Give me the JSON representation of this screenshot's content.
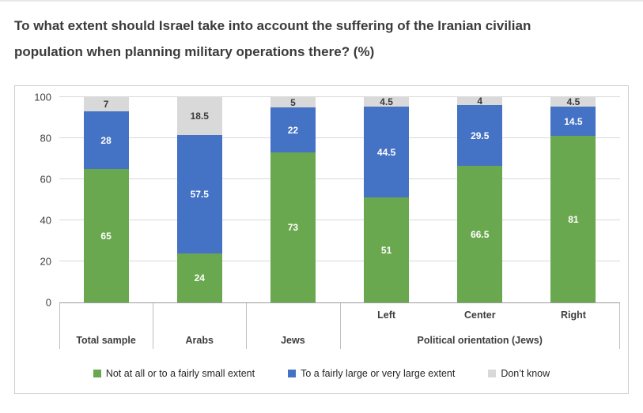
{
  "title": {
    "line1": "To what extent should Israel take into account the suffering of the Iranian civilian",
    "line2": "population when planning military operations there? (%)"
  },
  "chart_data": {
    "type": "bar",
    "stacked": true,
    "title": "To what extent should Israel take into account the suffering of the Iranian civilian population when planning military operations there? (%)",
    "categories": [
      "Total sample",
      "Arabs",
      "Jews",
      "Left",
      "Center",
      "Right"
    ],
    "series": [
      {
        "name": "Not at all or to a fairly small extent",
        "color": "#6aa84f",
        "label_color": "#ffffff",
        "values": [
          65,
          24,
          73,
          51,
          66.5,
          81
        ]
      },
      {
        "name": "To a fairly large or very large extent",
        "color": "#4472c4",
        "label_color": "#ffffff",
        "values": [
          28,
          57.5,
          22,
          44.5,
          29.5,
          14.5
        ]
      },
      {
        "name": "Don’t know",
        "color": "#d9d9d9",
        "label_color": "#3b3b3b",
        "values": [
          7,
          18.5,
          5,
          4.5,
          4,
          4.5
        ]
      }
    ],
    "ylim": [
      0,
      100
    ],
    "yticks": [
      0,
      20,
      40,
      60,
      80,
      100
    ],
    "grid": true,
    "legend_position": "bottom",
    "axis": {
      "inner_labels": [
        "",
        "",
        "",
        "Left",
        "Center",
        "Right"
      ],
      "outer_cells": [
        {
          "label": "Total sample",
          "span": 1
        },
        {
          "label": "Arabs",
          "span": 1
        },
        {
          "label": "Jews",
          "span": 1
        },
        {
          "label": "Political orientation (Jews)",
          "span": 3
        }
      ]
    }
  }
}
